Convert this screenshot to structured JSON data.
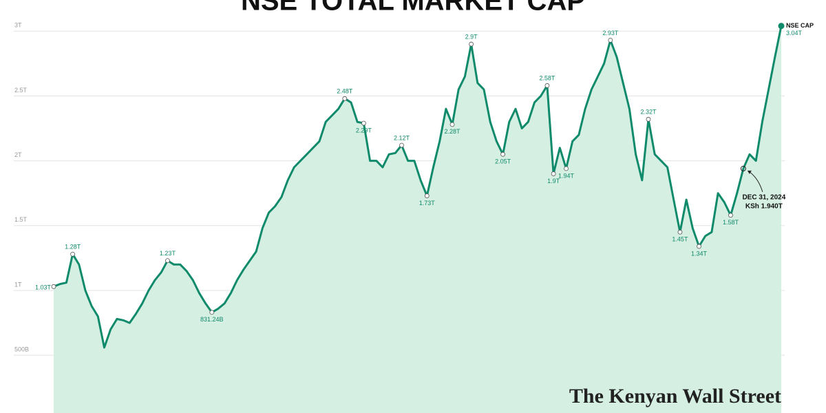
{
  "chart_data": {
    "type": "area",
    "title": "NSE TOTAL MARKET CAP",
    "watermark": "The Kenyan Wall Street",
    "color": "#0f8a6a",
    "fill": "#d5efe3",
    "grid": true,
    "series_name": "NSE CAP",
    "ylim": [
      55,
      3240
    ],
    "yticks": [
      {
        "value": 500,
        "label": "500B"
      },
      {
        "value": 1000,
        "label": "1T"
      },
      {
        "value": 1500,
        "label": "1.5T"
      },
      {
        "value": 2000,
        "label": "2T"
      },
      {
        "value": 2500,
        "label": "2.5T"
      },
      {
        "value": 3000,
        "label": "3T"
      }
    ],
    "values": [
      1030,
      1050,
      1060,
      1280,
      1200,
      1000,
      880,
      800,
      560,
      700,
      780,
      770,
      750,
      820,
      900,
      1000,
      1080,
      1140,
      1230,
      1200,
      1200,
      1150,
      1080,
      980,
      900,
      831.24,
      860,
      900,
      980,
      1080,
      1160,
      1230,
      1300,
      1480,
      1600,
      1650,
      1720,
      1850,
      1950,
      2000,
      2050,
      2100,
      2150,
      2300,
      2350,
      2400,
      2480,
      2450,
      2300,
      2290,
      2000,
      2000,
      1950,
      2050,
      2060,
      2120,
      2000,
      2000,
      1850,
      1730,
      1950,
      2150,
      2400,
      2280,
      2550,
      2650,
      2900,
      2600,
      2550,
      2300,
      2150,
      2050,
      2300,
      2400,
      2250,
      2300,
      2450,
      2500,
      2580,
      1900,
      2100,
      1940,
      2150,
      2200,
      2400,
      2550,
      2650,
      2750,
      2930,
      2800,
      2600,
      2400,
      2050,
      1850,
      2320,
      2050,
      2000,
      1950,
      1700,
      1450,
      1700,
      1480,
      1340,
      1420,
      1450,
      1750,
      1680,
      1580,
      1750,
      1940,
      2050,
      2000,
      2300,
      2550,
      2800,
      3040
    ],
    "value_labels": [
      "1.03T",
      null,
      null,
      "1.28T",
      null,
      null,
      null,
      null,
      null,
      null,
      null,
      null,
      null,
      null,
      null,
      null,
      null,
      null,
      "1.23T",
      null,
      null,
      null,
      null,
      null,
      null,
      "831.24B",
      null,
      null,
      null,
      null,
      null,
      null,
      null,
      null,
      null,
      null,
      null,
      null,
      null,
      null,
      null,
      null,
      null,
      null,
      null,
      null,
      "2.48T",
      null,
      null,
      "2.29T",
      null,
      null,
      null,
      null,
      null,
      "2.12T",
      null,
      null,
      null,
      "1.73T",
      null,
      null,
      null,
      "2.28T",
      null,
      null,
      "2.9T",
      null,
      null,
      null,
      null,
      "2.05T",
      null,
      null,
      null,
      null,
      null,
      null,
      "2.58T",
      "1.9T",
      null,
      "1.94T",
      null,
      null,
      null,
      null,
      null,
      null,
      "2.93T",
      null,
      null,
      null,
      null,
      null,
      "2.32T",
      null,
      null,
      null,
      null,
      "1.45T",
      null,
      null,
      "1.34T",
      null,
      null,
      null,
      null,
      "1.58T",
      null,
      null,
      null,
      null,
      null,
      null,
      null,
      "3.04T"
    ],
    "highlight": {
      "text": "DEC 31, 2024",
      "value_label": "KSh 1.940T",
      "value": 1940
    }
  }
}
